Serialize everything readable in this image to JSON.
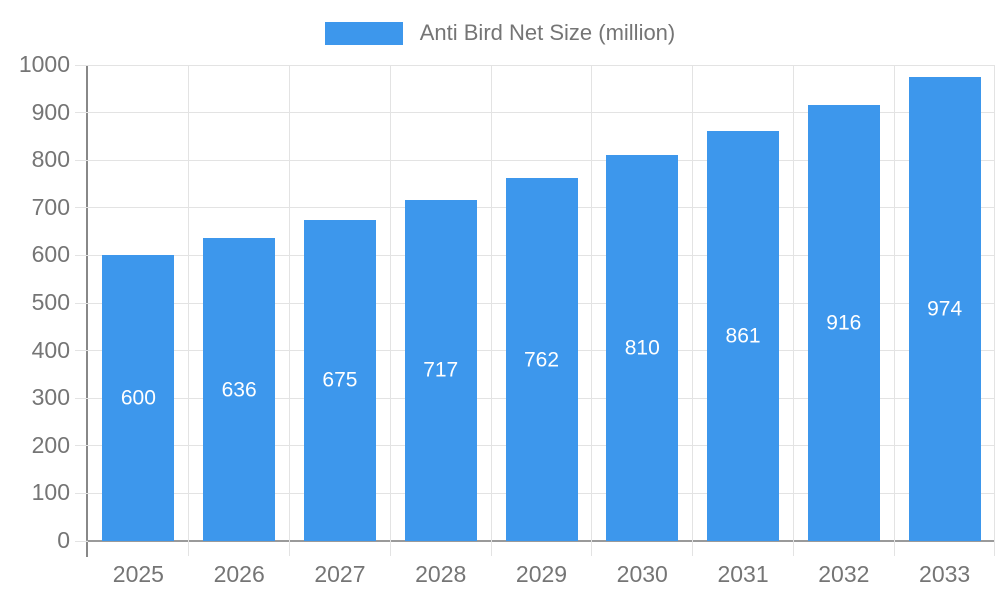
{
  "legend": {
    "label": "Anti Bird Net Size (million)"
  },
  "chart_data": {
    "type": "bar",
    "title": "Anti Bird Net Size (million)",
    "categories": [
      "2025",
      "2026",
      "2027",
      "2028",
      "2029",
      "2030",
      "2031",
      "2032",
      "2033"
    ],
    "values": [
      600,
      636,
      675,
      717,
      762,
      810,
      861,
      916,
      974
    ],
    "xlabel": "",
    "ylabel": "",
    "ylim": [
      0,
      1000
    ],
    "ytick_step": 100,
    "y_tick_labels": [
      "0",
      "100",
      "200",
      "300",
      "400",
      "500",
      "600",
      "700",
      "800",
      "900",
      "1000"
    ],
    "grid": true,
    "legend_position": "top-center",
    "value_labels": "inside-center",
    "colors": {
      "bar": "#3D97EC",
      "grid": "#E3E3E3",
      "y_axis": "#888888",
      "x_axis": "#9A9A9A",
      "tick_label": "#757575",
      "legend_label": "#757575",
      "value_label": "#FFFFFF",
      "background": "#FFFFFF"
    }
  }
}
